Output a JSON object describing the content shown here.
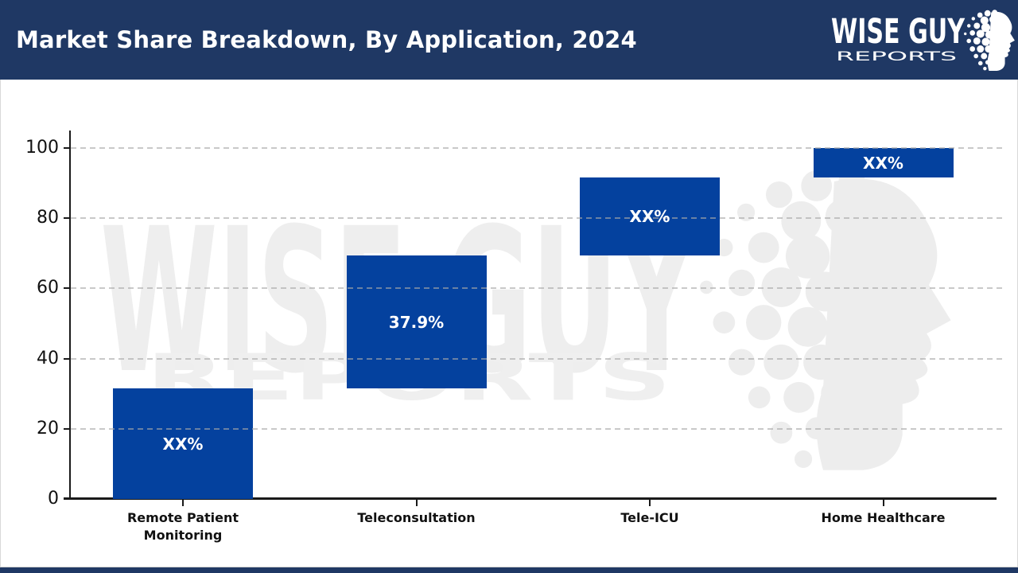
{
  "header": {
    "title": "Market Share Breakdown, By Application, 2024",
    "logo": {
      "name": "WISE GUY",
      "sub": "REPORTS"
    }
  },
  "watermark": {
    "name": "WISE GUY",
    "sub": "REPORTS"
  },
  "chart_data": {
    "type": "bar",
    "variant": "waterfall-floating-bars",
    "title": "Market Share Breakdown, By Application, 2024",
    "unit": "%",
    "categories": [
      "Remote Patient Monitoring",
      "Teleconsultation",
      "Tele-ICU",
      "Home Healthcare"
    ],
    "bars": [
      {
        "category": "Remote Patient Monitoring",
        "start": 0,
        "end": 31.5,
        "label": "XX%"
      },
      {
        "category": "Teleconsultation",
        "start": 31.5,
        "end": 69.4,
        "label": "37.9%",
        "value": 37.9
      },
      {
        "category": "Tele-ICU",
        "start": 69.4,
        "end": 91.5,
        "label": "XX%"
      },
      {
        "category": "Home Healthcare",
        "start": 91.5,
        "end": 100,
        "label": "XX%"
      }
    ],
    "y_axis": {
      "ticks": [
        0,
        20,
        40,
        60,
        80,
        100
      ],
      "range": [
        0,
        105
      ]
    },
    "x_axis": {
      "label": ""
    },
    "grid": {
      "horizontal": true,
      "style": "dashed"
    },
    "legend": null
  },
  "colors": {
    "header_bg": "#1f3864",
    "footer_bg": "#1f3864",
    "bar": "#04419e",
    "bar_label": "#ffffff",
    "grid": "#d9d9d9",
    "axis": "#1a1a1a",
    "watermark": "#ededed"
  }
}
